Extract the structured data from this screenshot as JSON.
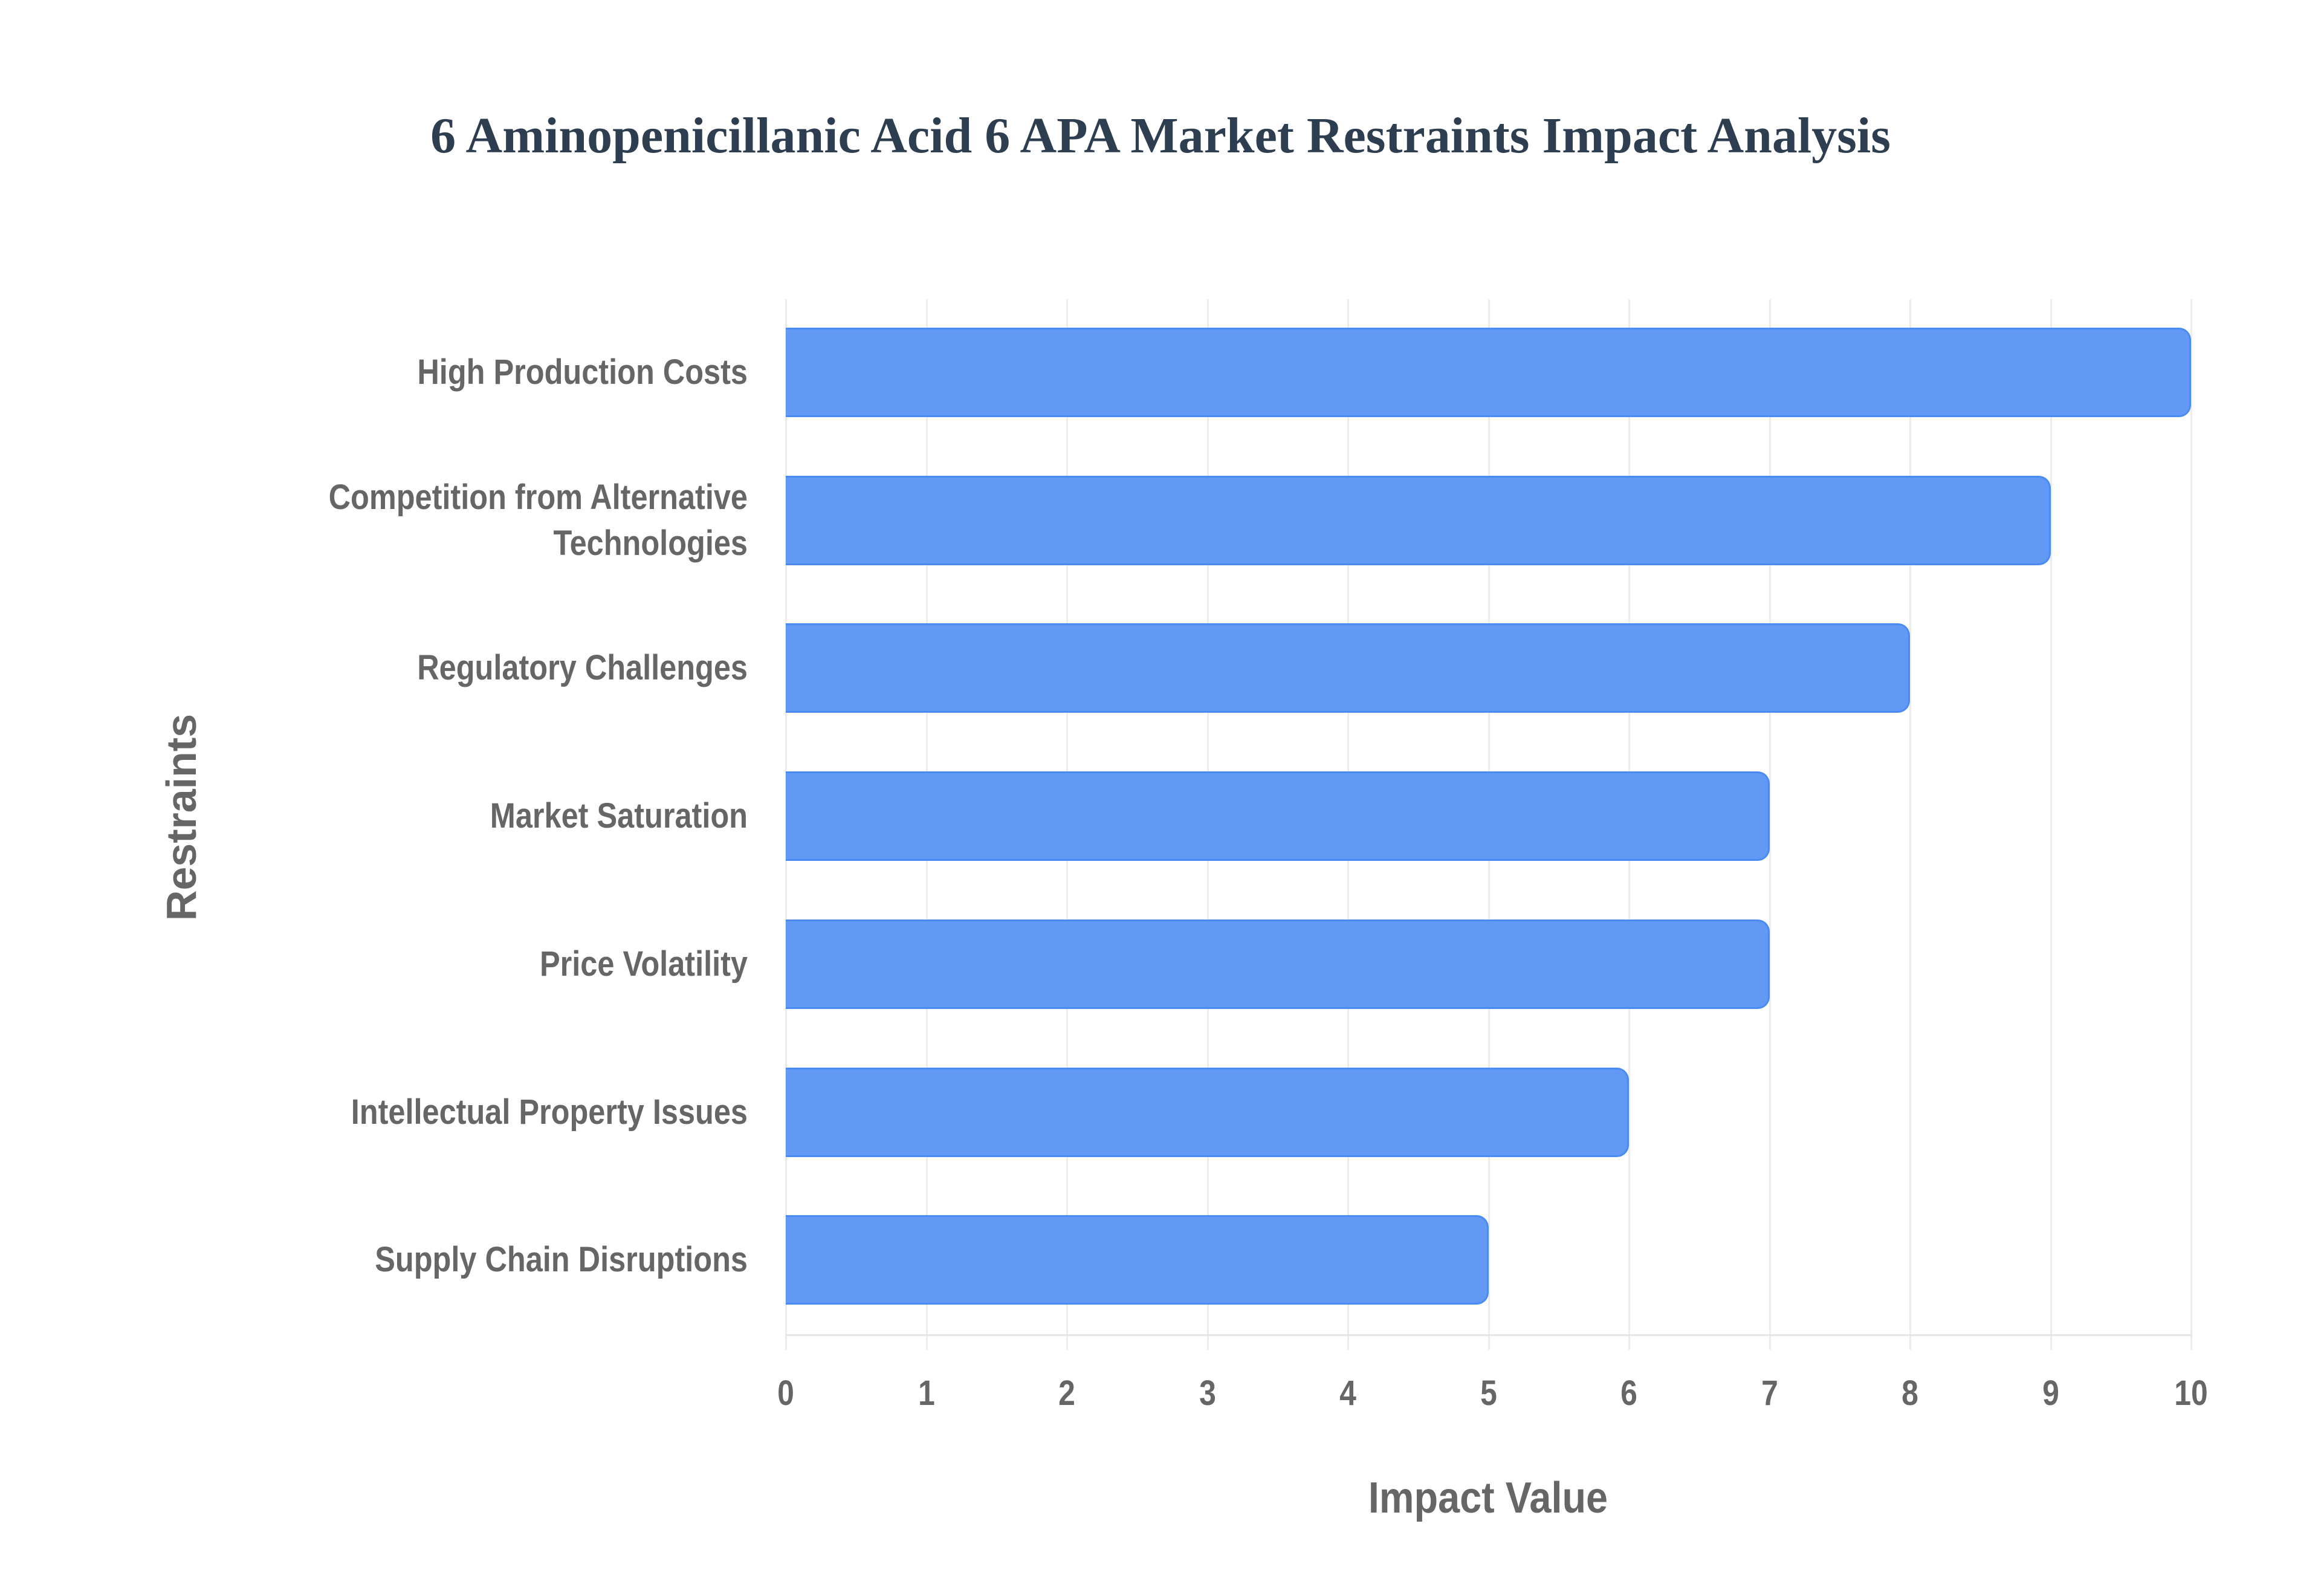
{
  "chart_data": {
    "type": "bar",
    "orientation": "horizontal",
    "title": "6 Aminopenicillanic Acid 6 APA Market Restraints Impact Analysis",
    "xlabel": "Impact Value",
    "ylabel": "Restraints",
    "categories": [
      "High Production Costs",
      "Competition from Alternative Technologies",
      "Regulatory Challenges",
      "Market Saturation",
      "Price Volatility",
      "Intellectual Property Issues",
      "Supply Chain Disruptions"
    ],
    "category_lines": [
      [
        "High Production Costs"
      ],
      [
        "Competition from Alternative",
        "Technologies"
      ],
      [
        "Regulatory Challenges"
      ],
      [
        "Market Saturation"
      ],
      [
        "Price Volatility"
      ],
      [
        "Intellectual Property Issues"
      ],
      [
        "Supply Chain Disruptions"
      ]
    ],
    "values": [
      10,
      9,
      8,
      7,
      7,
      6,
      5
    ],
    "xlim": [
      0,
      10
    ],
    "xticks": [
      "0",
      "1",
      "2",
      "3",
      "4",
      "5",
      "6",
      "7",
      "8",
      "9",
      "10"
    ],
    "grid": true,
    "legend": null,
    "colors": {
      "bar_fill": "#6199f5",
      "bar_border": "#4a8bf3",
      "title": "#2c3e50",
      "axis_text": "#666666",
      "grid": "#ececec"
    }
  }
}
